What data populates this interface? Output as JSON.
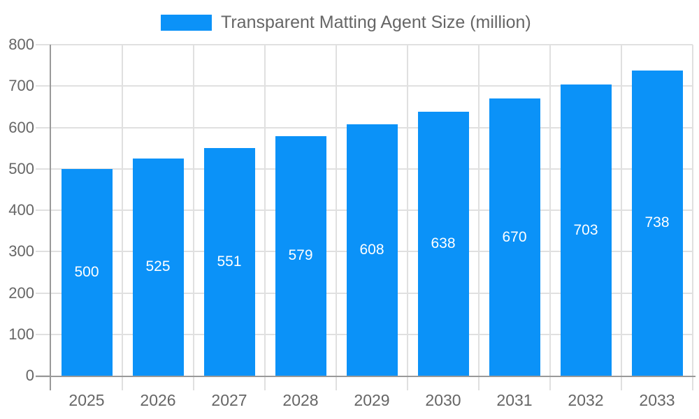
{
  "chart_data": {
    "type": "bar",
    "title": "Transparent Matting Agent Size (million)",
    "categories": [
      "2025",
      "2026",
      "2027",
      "2028",
      "2029",
      "2030",
      "2031",
      "2032",
      "2033"
    ],
    "values": [
      500,
      525,
      551,
      579,
      608,
      638,
      670,
      703,
      738
    ],
    "xlabel": "",
    "ylabel": "",
    "ylim": [
      0,
      800
    ],
    "ytick_step": 100,
    "grid": "both",
    "legend_position": "top",
    "value_labels": "inside-middle",
    "colors": {
      "bar": "#0b92f8",
      "grid": "#e0e0e0",
      "axis": "#999999",
      "axis_text": "#666666",
      "value_label_text": "#ffffff",
      "background": "#ffffff"
    }
  }
}
